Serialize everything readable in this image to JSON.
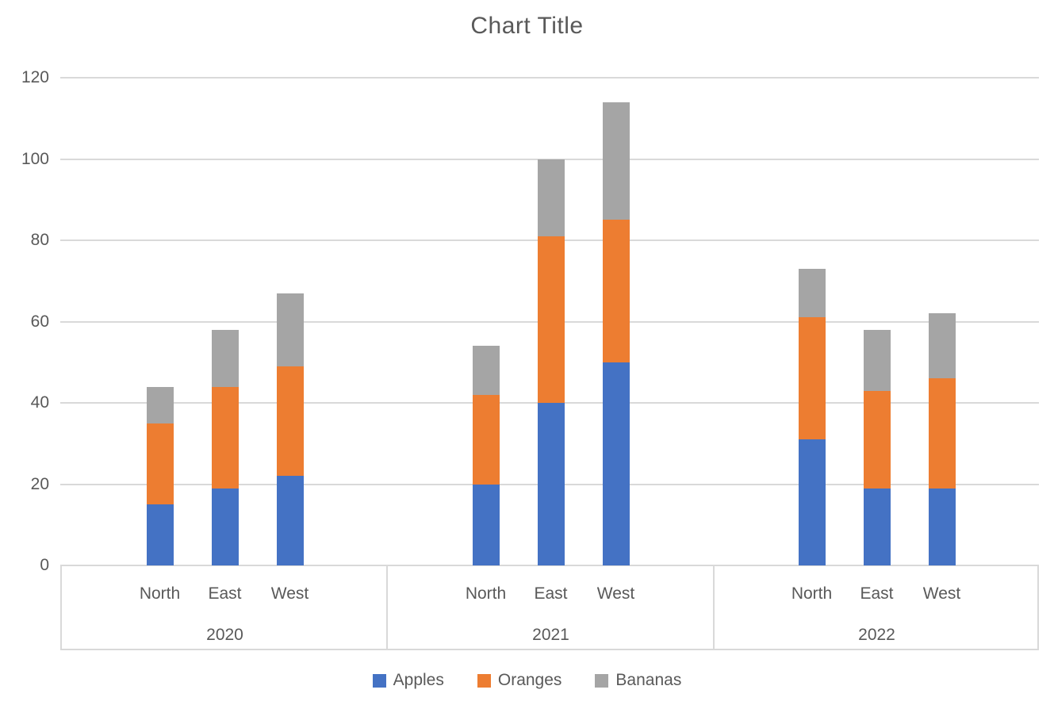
{
  "title": "Chart Title",
  "colors": {
    "apples": "#4472C4",
    "oranges": "#ED7D31",
    "bananas": "#A5A5A5",
    "gridline": "#D9D9D9",
    "text": "#595959"
  },
  "chart_data": {
    "type": "bar",
    "stacked": true,
    "title": "Chart Title",
    "groups": [
      "2020",
      "2021",
      "2022"
    ],
    "categories": [
      "North",
      "East",
      "West"
    ],
    "series": [
      {
        "name": "Apples",
        "color": "#4472C4",
        "values": [
          [
            15,
            19,
            22
          ],
          [
            20,
            40,
            50
          ],
          [
            31,
            19,
            19
          ]
        ]
      },
      {
        "name": "Oranges",
        "color": "#ED7D31",
        "values": [
          [
            20,
            25,
            27
          ],
          [
            22,
            41,
            35
          ],
          [
            30,
            24,
            27
          ]
        ]
      },
      {
        "name": "Bananas",
        "color": "#A5A5A5",
        "values": [
          [
            9,
            14,
            18
          ],
          [
            12,
            19,
            29
          ],
          [
            12,
            15,
            16
          ]
        ]
      }
    ],
    "stack_totals": [
      [
        44,
        58,
        67
      ],
      [
        54,
        100,
        114
      ],
      [
        73,
        58,
        62
      ]
    ],
    "y_ticks": [
      0,
      20,
      40,
      60,
      80,
      100,
      120
    ],
    "ylim": [
      0,
      120
    ],
    "grid": true,
    "legend": [
      "Apples",
      "Oranges",
      "Bananas"
    ],
    "legend_position": "bottom"
  }
}
